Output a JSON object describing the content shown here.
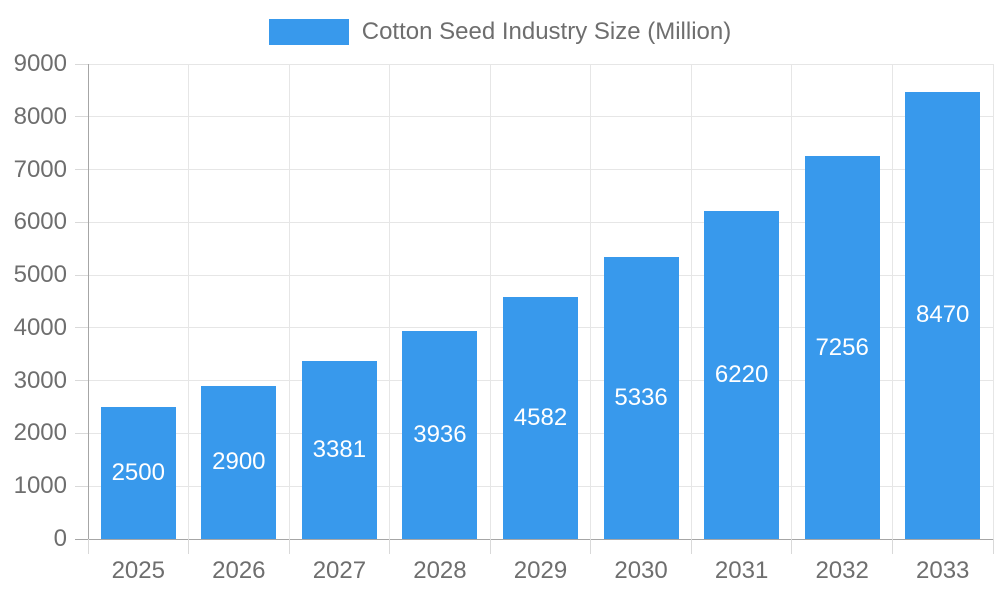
{
  "legend": {
    "label": "Cotton Seed Industry Size (Million)"
  },
  "chart_data": {
    "type": "bar",
    "title": "Cotton Seed Industry Size (Million)",
    "series_name": "Cotton Seed Industry Size (Million)",
    "categories": [
      "2025",
      "2026",
      "2027",
      "2028",
      "2029",
      "2030",
      "2031",
      "2032",
      "2033"
    ],
    "values": [
      2500,
      2900,
      3381,
      3936,
      4582,
      5336,
      6220,
      7256,
      8470
    ],
    "xlabel": "",
    "ylabel": "",
    "ylim": [
      0,
      9000
    ],
    "ytick_step": 1000,
    "ytick_labels": [
      "0",
      "1000",
      "2000",
      "3000",
      "4000",
      "5000",
      "6000",
      "7000",
      "8000",
      "9000"
    ],
    "grid": true,
    "legend_position": "top",
    "bar_color": "#3899EC",
    "bar_label_color": "#FFFFFF",
    "axis_text_color": "#6E6E6E",
    "grid_color": "#E6E6E6",
    "axis_line_color": "#A6A6A6",
    "tick_color": "#D9D9D9",
    "background_color": "#FFFFFF"
  }
}
